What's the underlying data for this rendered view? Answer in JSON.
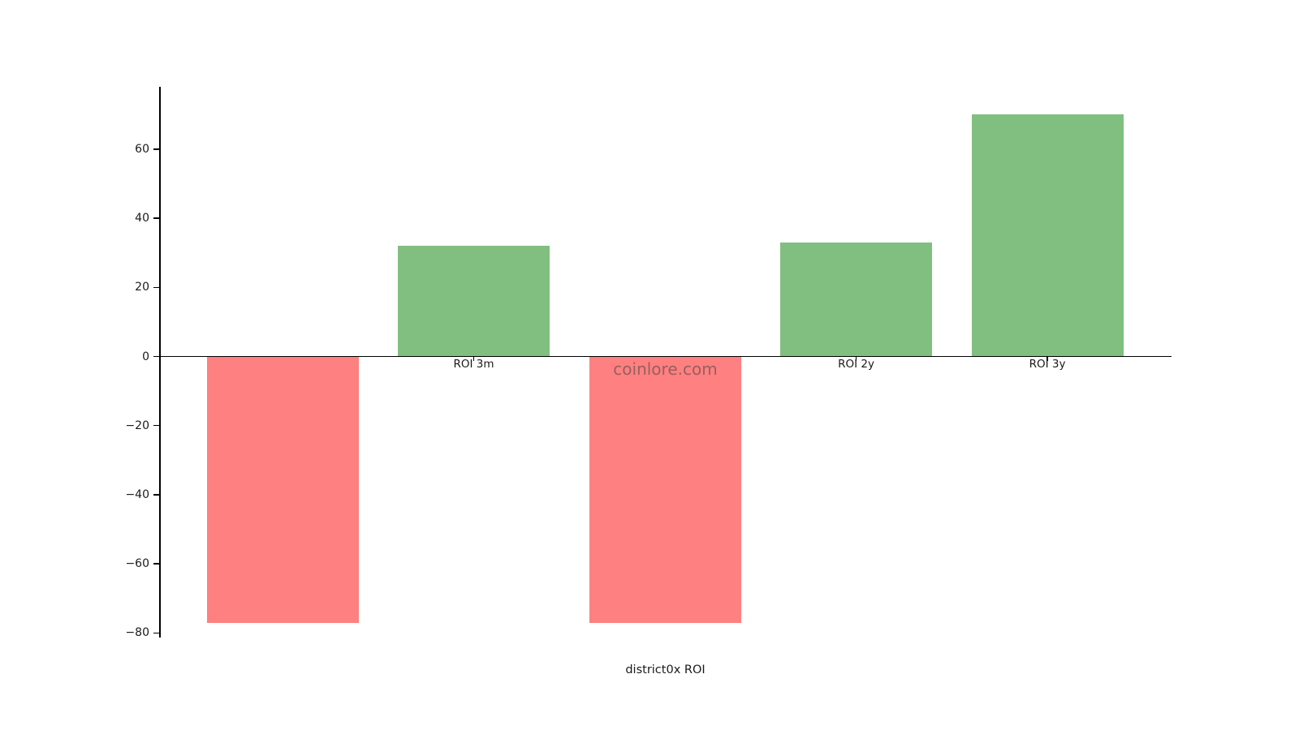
{
  "page": {
    "background_color": "#ffffff"
  },
  "watermark": {
    "text": "coinlore.com"
  },
  "chart_data": {
    "type": "bar",
    "title": "district0x ROI",
    "title_position": "bottom-center",
    "categories": [
      "",
      "ROI 3m",
      "",
      "ROI 2y",
      "ROI 3y"
    ],
    "values": [
      -77,
      32,
      -77,
      33,
      70
    ],
    "bar_colors": [
      "#ff8080",
      "#80bf80",
      "#ff8080",
      "#80bf80",
      "#80bf80"
    ],
    "positive_color": "#80bf80",
    "negative_color": "#ff8080",
    "axis_color": "#000000",
    "y_ticks": [
      {
        "label": "60",
        "value": 60
      },
      {
        "label": "40",
        "value": 40
      },
      {
        "label": "20",
        "value": 20
      },
      {
        "label": "0",
        "value": 0
      },
      {
        "label": "−20",
        "value": -20
      },
      {
        "label": "−40",
        "value": -40
      },
      {
        "label": "−60",
        "value": -60
      },
      {
        "label": "−80",
        "value": -80
      }
    ],
    "x_ticks": [
      {
        "label": "ROI 3m",
        "index": 1
      },
      {
        "label": "ROI 2y",
        "index": 3
      },
      {
        "label": "ROI 3y",
        "index": 4
      }
    ],
    "ylim": [
      -81,
      78
    ],
    "grid": false,
    "legend": null,
    "watermark": "coinlore.com"
  }
}
